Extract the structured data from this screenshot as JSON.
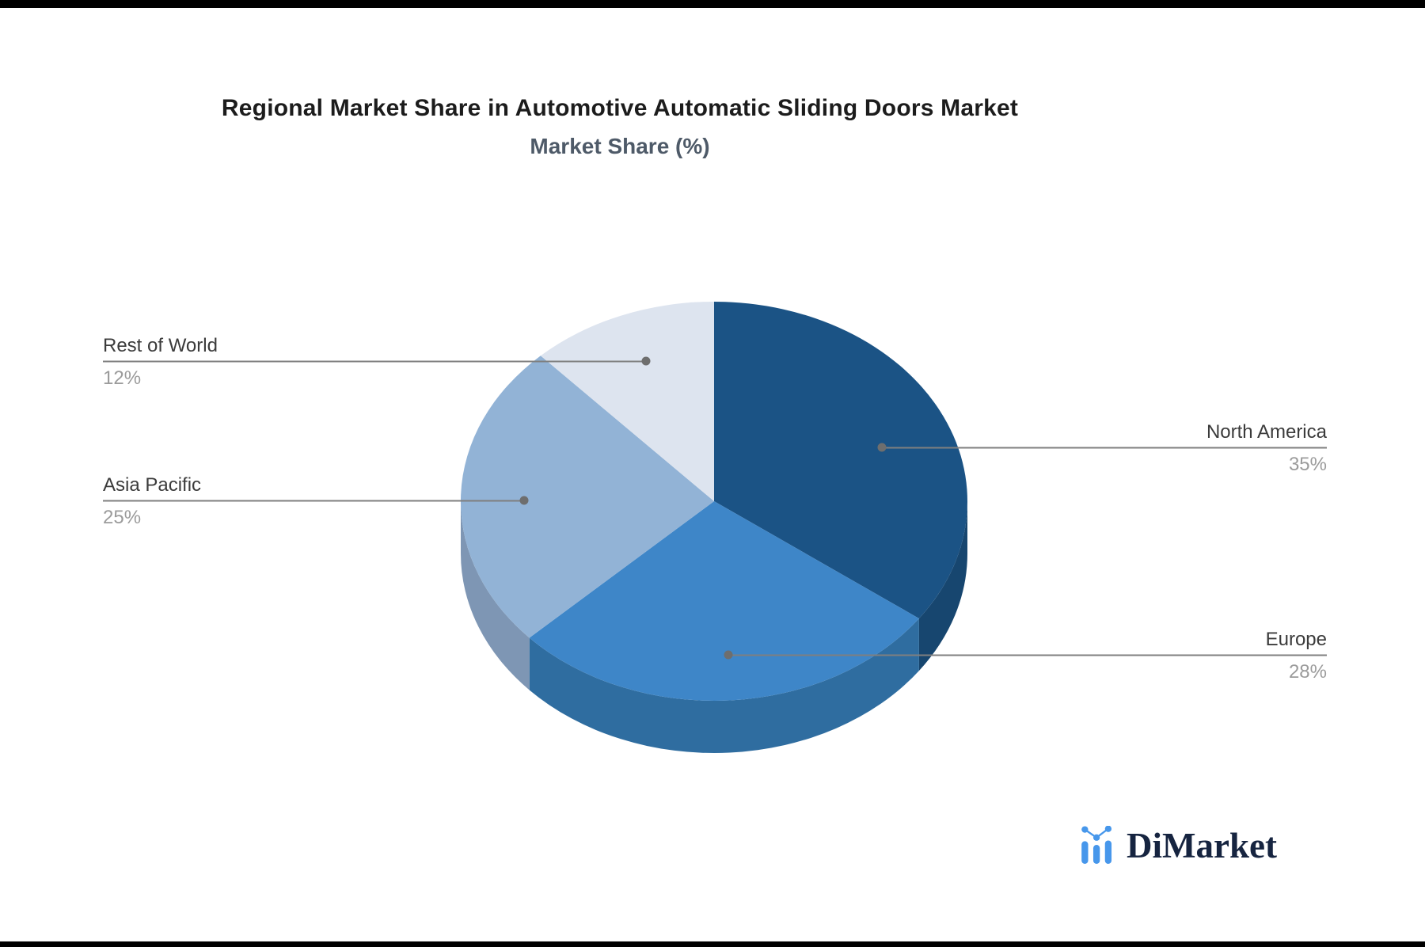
{
  "header": {
    "title": "Regional Market Share in Automotive Automatic Sliding Doors Market",
    "subtitle": "Market Share (%)"
  },
  "chart_data": {
    "type": "pie",
    "style": "3d",
    "title": "Regional Market Share in Automotive Automatic Sliding Doors Market",
    "subtitle": "Market Share (%)",
    "unit": "%",
    "start_angle_deg": 0,
    "direction": "clockwise",
    "labels_style": "callout",
    "slices": [
      {
        "label": "North America",
        "value": 35,
        "display": "35%",
        "color": "#1b5385",
        "side_color": "#17466f"
      },
      {
        "label": "Europe",
        "value": 28,
        "display": "28%",
        "color": "#3e86c8",
        "side_color": "#2f6da0"
      },
      {
        "label": "Asia Pacific",
        "value": 25,
        "display": "25%",
        "color": "#92b3d6",
        "side_color": "#7e96b4"
      },
      {
        "label": "Rest of World",
        "value": 12,
        "display": "12%",
        "color": "#dde4ef",
        "side_color": "#c5cedd"
      }
    ],
    "callout_line_color": "#7f7f7f",
    "callout_dot_color": "#6e6e6e"
  },
  "branding": {
    "logo_text": "DiMarket",
    "logo_icon": "bar-line-chart-icon",
    "icon_color": "#4797EB",
    "text_color": "#162440"
  }
}
